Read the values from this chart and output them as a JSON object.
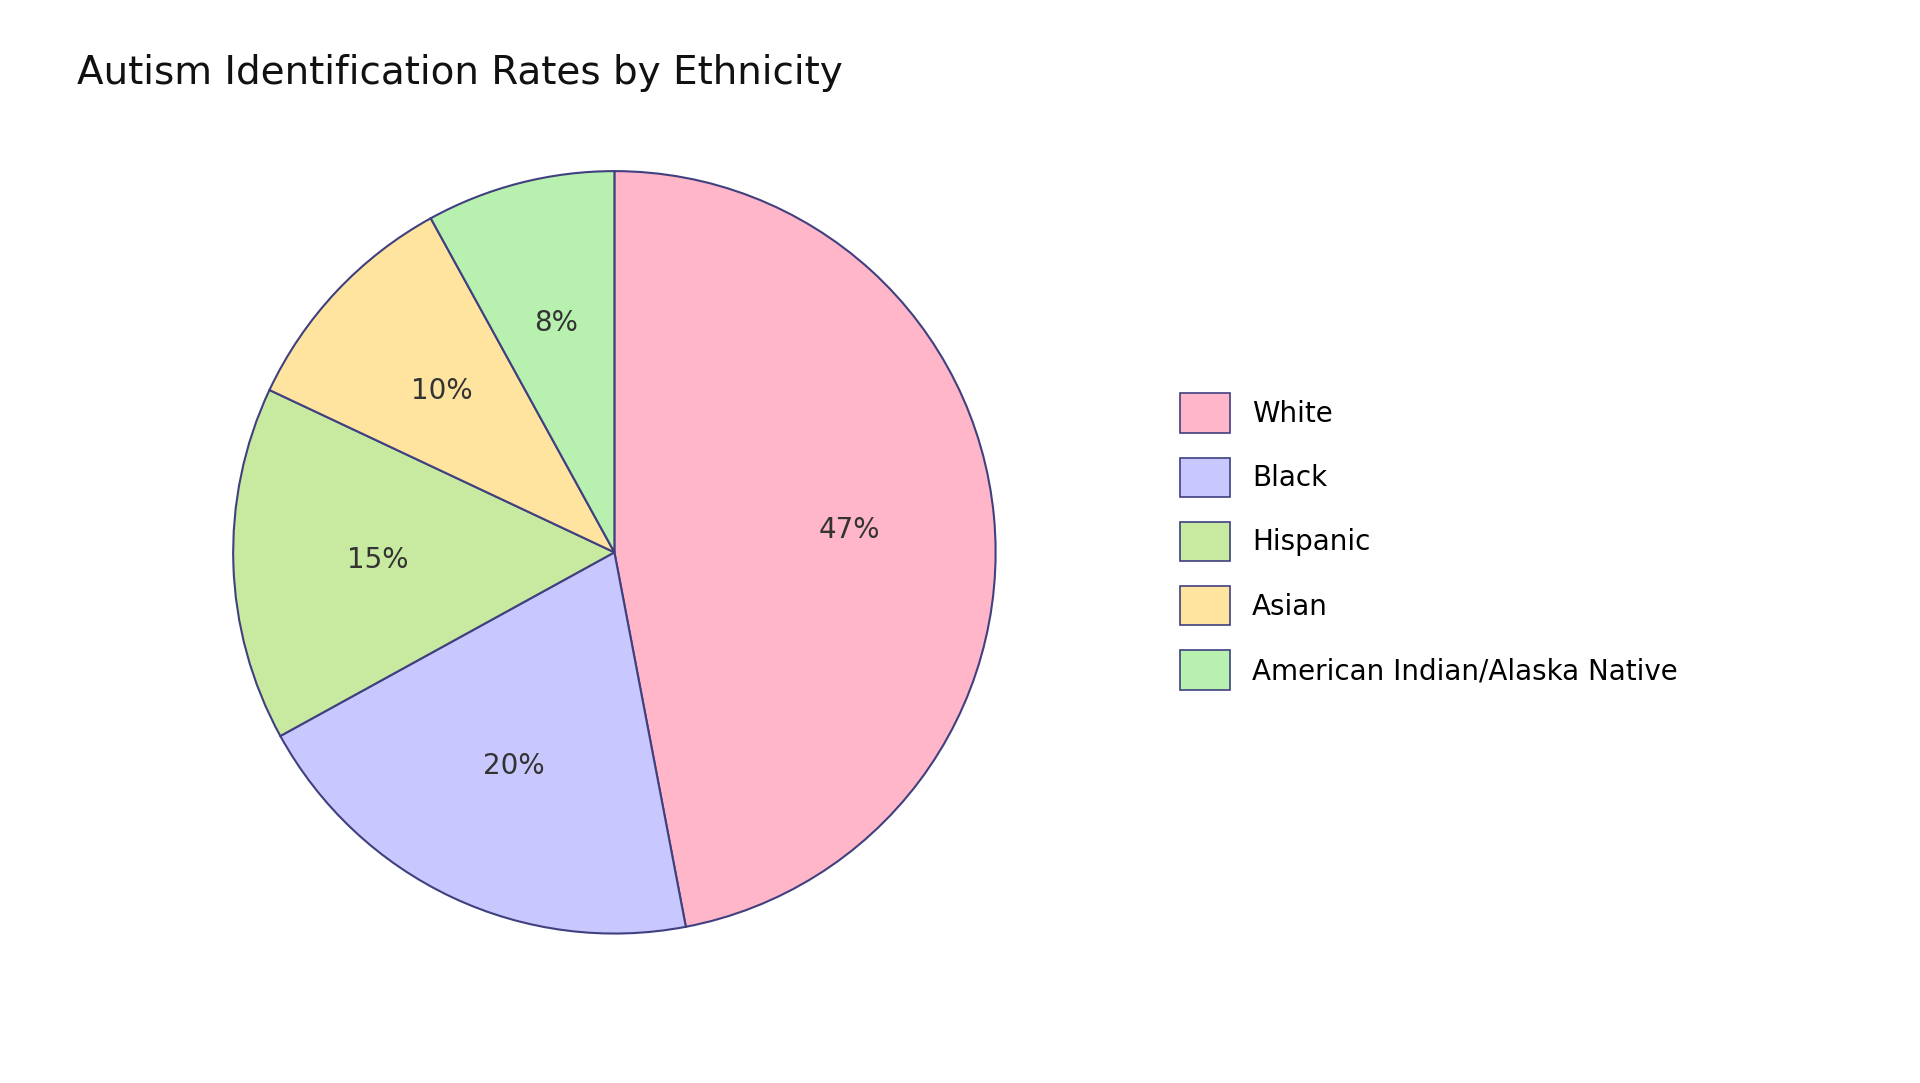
{
  "title": "Autism Identification Rates by Ethnicity",
  "labels": [
    "White",
    "Black",
    "Hispanic",
    "Asian",
    "American Indian/Alaska Native"
  ],
  "values": [
    47,
    20,
    15,
    10,
    8
  ],
  "colors": [
    "#FFB6C8",
    "#C8C8FF",
    "#C8EAA0",
    "#FFE4A0",
    "#B8F0B0"
  ],
  "edge_color": "#404080",
  "pct_labels": [
    "47%",
    "20%",
    "15%",
    "10%",
    "8%"
  ],
  "title_fontsize": 28,
  "label_fontsize": 20,
  "legend_fontsize": 20,
  "background_color": "#FFFFFF",
  "startangle": 90
}
